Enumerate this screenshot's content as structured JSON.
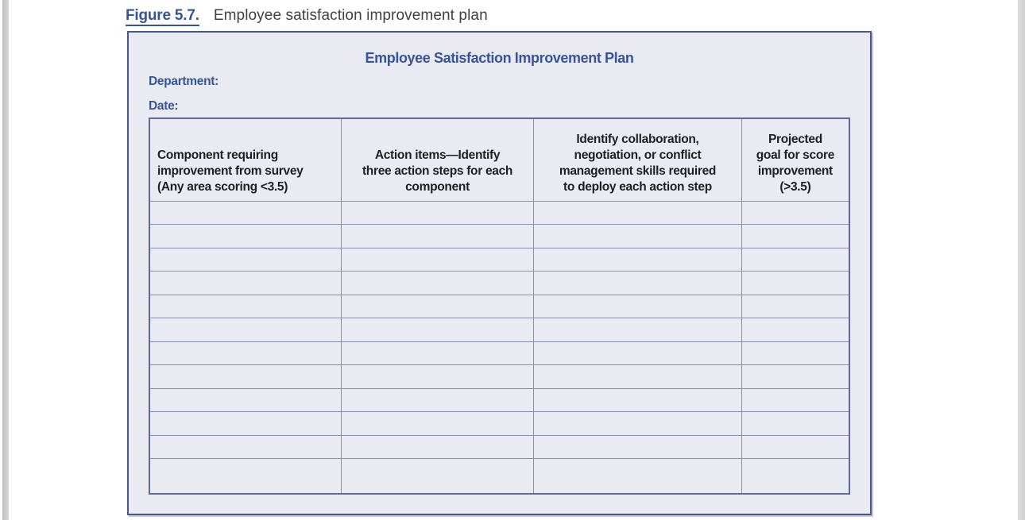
{
  "caption": {
    "label": "Figure 5.7.",
    "title": "Employee satisfaction improvement plan"
  },
  "form": {
    "title": "Employee Satisfaction Improvement Plan",
    "department_label": "Department:",
    "department_value": "",
    "date_label": "Date:",
    "date_value": "",
    "table": {
      "columns": [
        {
          "header": "Component requiring\nimprovement from survey\n(Any area scoring <3.5)",
          "align": "left"
        },
        {
          "header": "Action items—Identify\nthree action steps for each\ncomponent",
          "align": "center"
        },
        {
          "header": "Identify collaboration,\nnegotiation, or conflict\nmanagement skills required\nto deploy each action step",
          "align": "center"
        },
        {
          "header": "Projected\ngoal for score\nimprovement\n(>3.5)",
          "align": "center"
        }
      ],
      "empty_row_count": 12,
      "cell_values": []
    }
  },
  "colors": {
    "accent_blue": "#35549b",
    "caption_text": "#414141",
    "box_background": "#eaebf2",
    "box_border": "#46598f",
    "table_outer_border": "#5d6b9e",
    "cell_border": "#8790b4",
    "header_text": "#1f1f23",
    "page_background": "#ffffff",
    "scan_edge_gray": "#c9c9c9"
  }
}
